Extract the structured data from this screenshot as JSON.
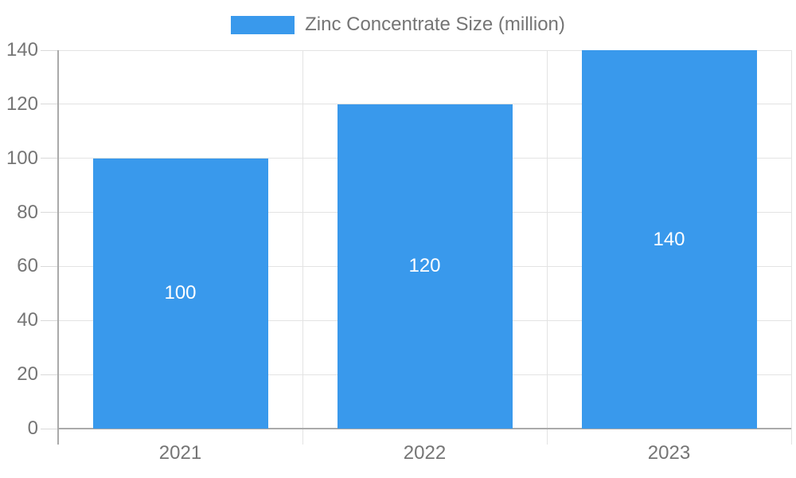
{
  "legend": {
    "label": "Zinc Concentrate Size (million)"
  },
  "colors": {
    "bar": "#3999EC",
    "axis_line": "#aaaaaa",
    "grid_line": "#e3e3e3",
    "tick_line": "#d9d9d9",
    "axis_text": "#757575",
    "bar_label": "#ffffff"
  },
  "chart_data": {
    "type": "bar",
    "title": "Zinc Concentrate Size (million)",
    "categories": [
      "2021",
      "2022",
      "2023"
    ],
    "values": [
      100,
      120,
      140
    ],
    "bar_labels": [
      "100",
      "120",
      "140"
    ],
    "series": [
      {
        "name": "Zinc Concentrate Size (million)",
        "values": [
          100,
          120,
          140
        ]
      }
    ],
    "xlabel": "",
    "ylabel": "",
    "ylim": [
      0,
      140
    ],
    "y_ticks": [
      0,
      20,
      40,
      60,
      80,
      100,
      120,
      140
    ],
    "grid": true,
    "legend_position": "top-center"
  }
}
